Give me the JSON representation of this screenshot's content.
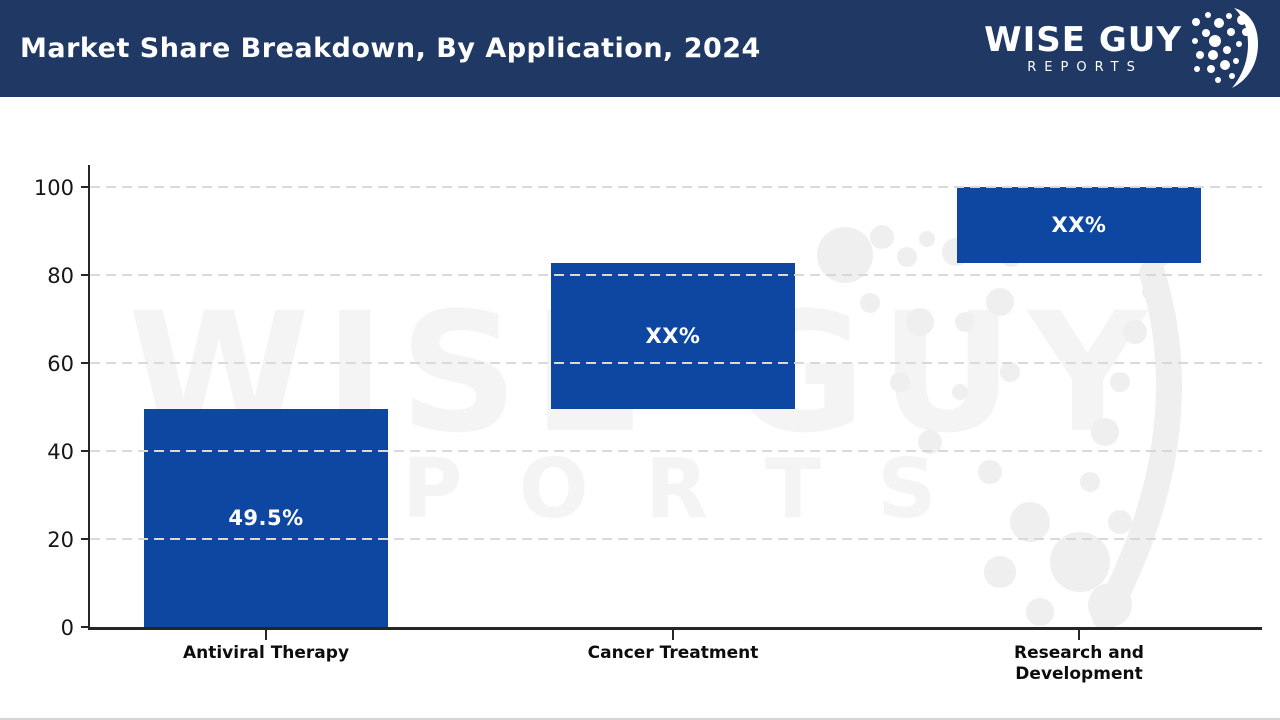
{
  "header": {
    "title": "Market Share Breakdown, By Application, 2024",
    "logo": {
      "line1": "WISE GUY",
      "line2": "REPORTS"
    }
  },
  "watermark": {
    "line1": "WISE GUY",
    "line2": "R E P O R T S"
  },
  "colors": {
    "header_navy": "#1F3864",
    "bar_blue": "#0D47A1",
    "gridline_gray": "#d9d9d9",
    "watermark_gray": "#f4f4f4"
  },
  "chart_data": {
    "type": "bar",
    "subtype": "floating-segment-waterfall",
    "title": "Market Share Breakdown, By Application, 2024",
    "categories": [
      "Antiviral Therapy",
      "Cancer Treatment",
      "Research and Development"
    ],
    "segments": [
      {
        "category": "Antiviral Therapy",
        "start": 0,
        "end": 49.5,
        "label": "49.5%"
      },
      {
        "category": "Cancer Treatment",
        "start": 49.5,
        "end": 82.7,
        "label": "XX%"
      },
      {
        "category": "Research and Development",
        "start": 82.7,
        "end": 100,
        "label": "XX%"
      }
    ],
    "yticks": [
      0,
      20,
      40,
      60,
      80,
      100
    ],
    "ylim": [
      0,
      100
    ],
    "xlabel": "",
    "ylabel": "",
    "bar_color": "#0D47A1",
    "grid": "horizontal-dashed-over-bars",
    "legend": "none"
  }
}
